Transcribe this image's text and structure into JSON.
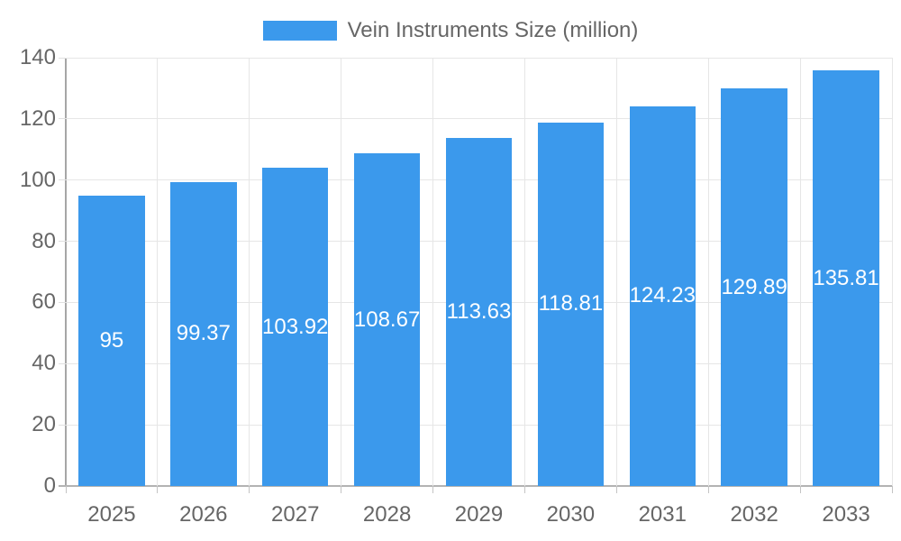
{
  "legend": {
    "label": "Vein Instruments Size (million)"
  },
  "colors": {
    "bar": "#3b99ec",
    "bar_label": "#ffffff",
    "axis_text": "#666666",
    "gridline": "#e6e6e6",
    "axis_line": "#a6a6a6"
  },
  "chart_data": {
    "type": "bar",
    "title": "",
    "xlabel": "",
    "ylabel": "",
    "categories": [
      "2025",
      "2026",
      "2027",
      "2028",
      "2029",
      "2030",
      "2031",
      "2032",
      "2033"
    ],
    "values": [
      95,
      99.37,
      103.92,
      108.67,
      113.63,
      118.81,
      124.23,
      129.89,
      135.81
    ],
    "value_labels": [
      "95",
      "99.37",
      "103.92",
      "108.67",
      "113.63",
      "118.81",
      "124.23",
      "129.89",
      "135.81"
    ],
    "series_name": "Vein Instruments Size (million)",
    "ylim": [
      0,
      140
    ],
    "yticks": [
      0,
      20,
      40,
      60,
      80,
      100,
      120,
      140
    ],
    "grid": "on",
    "legend_position": "top"
  }
}
